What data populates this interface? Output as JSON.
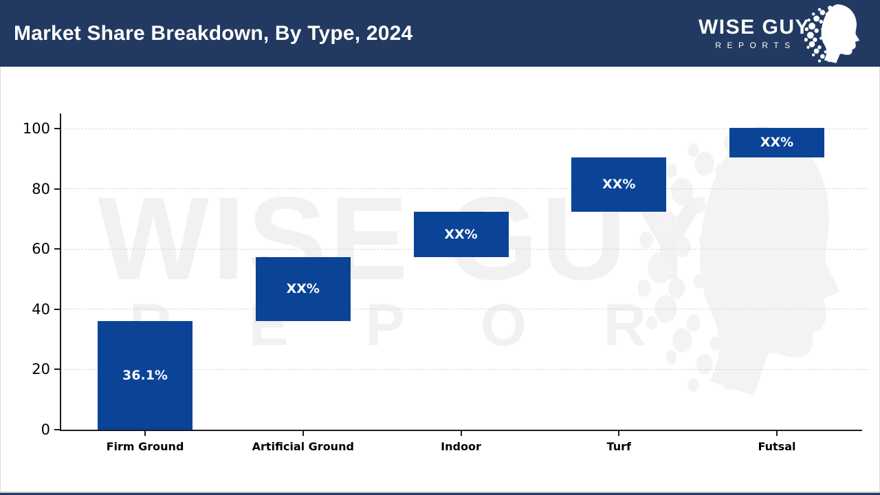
{
  "header": {
    "title": "Market Share Breakdown, By Type, 2024",
    "logo": {
      "line1": "WISE GUY",
      "line2": "REPORTS"
    }
  },
  "icons": {
    "logo_head": "dotted-head-profile-icon"
  },
  "watermark": {
    "line1": "WISE GUY",
    "line2": "R E P O R T S"
  },
  "colors": {
    "header_bg": "#223a61",
    "footer_bg": "#223a61",
    "bar": "#0b4397",
    "bar_label": "#ffffff",
    "grid": "#d9d9d9",
    "axis": "#1a1a1a",
    "watermark": "#f1f1f1"
  },
  "chart_data": {
    "type": "bar",
    "subtype": "waterfall",
    "title": "Market Share Breakdown, By Type, 2024",
    "xlabel": "",
    "ylabel": "",
    "categories": [
      "Firm Ground",
      "Artificial Ground",
      "Indoor",
      "Turf",
      "Futsal"
    ],
    "segments": [
      {
        "category": "Firm Ground",
        "start": 0,
        "end": 36.1,
        "value": 36.1,
        "label": "36.1%"
      },
      {
        "category": "Artificial Ground",
        "start": 36.1,
        "end": 57.3,
        "value": 21.2,
        "label": "XX%"
      },
      {
        "category": "Indoor",
        "start": 57.3,
        "end": 72.4,
        "value": 15.1,
        "label": "XX%"
      },
      {
        "category": "Turf",
        "start": 72.4,
        "end": 90.4,
        "value": 18.0,
        "label": "XX%"
      },
      {
        "category": "Futsal",
        "start": 90.4,
        "end": 100.3,
        "value": 9.9,
        "label": "XX%"
      }
    ],
    "y_ticks": [
      0,
      20,
      40,
      60,
      80,
      100
    ],
    "ylim": [
      0,
      105
    ],
    "grid": "horizontal-dashed",
    "legend": "none"
  }
}
